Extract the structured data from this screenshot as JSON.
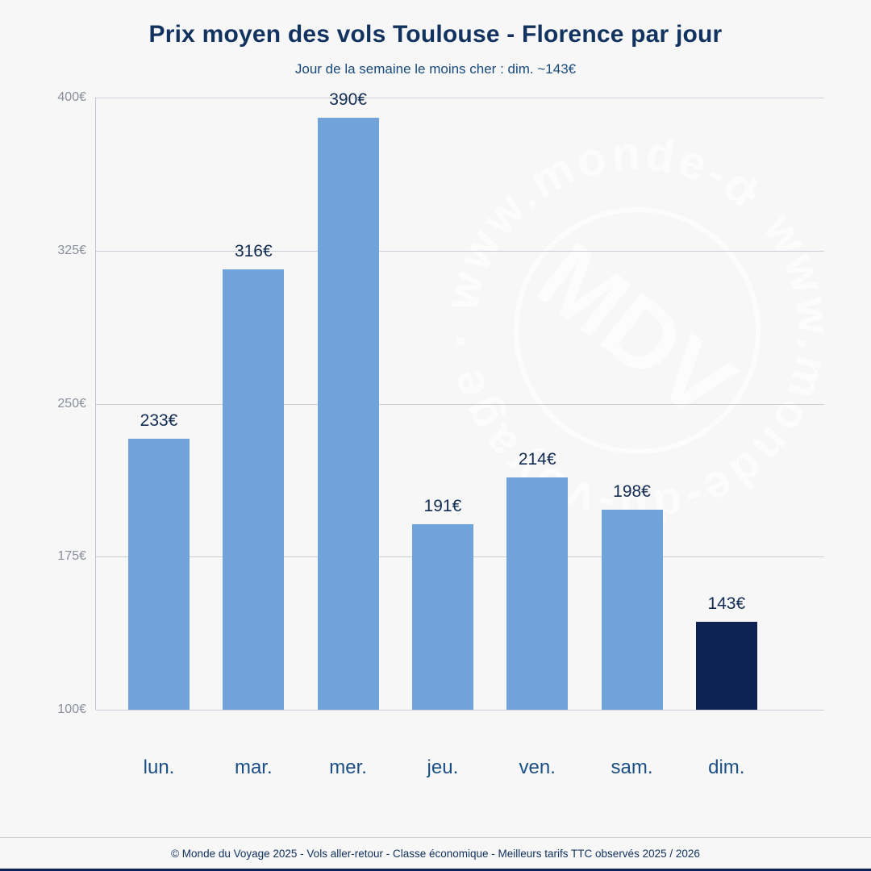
{
  "page": {
    "title": "Prix moyen des vols Toulouse - Florence par jour",
    "subtitle": "Jour de la semaine le moins cher : dim. ~143€",
    "footer": "© Monde du Voyage 2025 - Vols aller-retour - Classe économique - Meilleurs tarifs TTC observés 2025 / 2026",
    "watermark_text": "www.monde-du-voyage",
    "watermark_center": "MDV"
  },
  "chart_data": {
    "type": "bar",
    "title": "Prix moyen des vols Toulouse - Florence par jour",
    "subtitle": "Jour de la semaine le moins cher : dim. ~143€",
    "categories": [
      "lun.",
      "mar.",
      "mer.",
      "jeu.",
      "ven.",
      "sam.",
      "dim."
    ],
    "values": [
      233,
      316,
      390,
      191,
      214,
      198,
      143
    ],
    "value_labels": [
      "233€",
      "316€",
      "390€",
      "191€",
      "214€",
      "198€",
      "143€"
    ],
    "xlabel": "",
    "ylabel": "",
    "ylim": [
      100,
      400
    ],
    "yticks": [
      400,
      325,
      250,
      175,
      100
    ],
    "ytick_labels": [
      "400€",
      "325€",
      "250€",
      "175€",
      "100€"
    ],
    "grid": true,
    "legend": "none",
    "bar_color": "#6fa3da",
    "highlight_color": "#0e2253",
    "highlight_index": 6,
    "cheapest_day": "dim.",
    "cheapest_price": "~143€"
  }
}
